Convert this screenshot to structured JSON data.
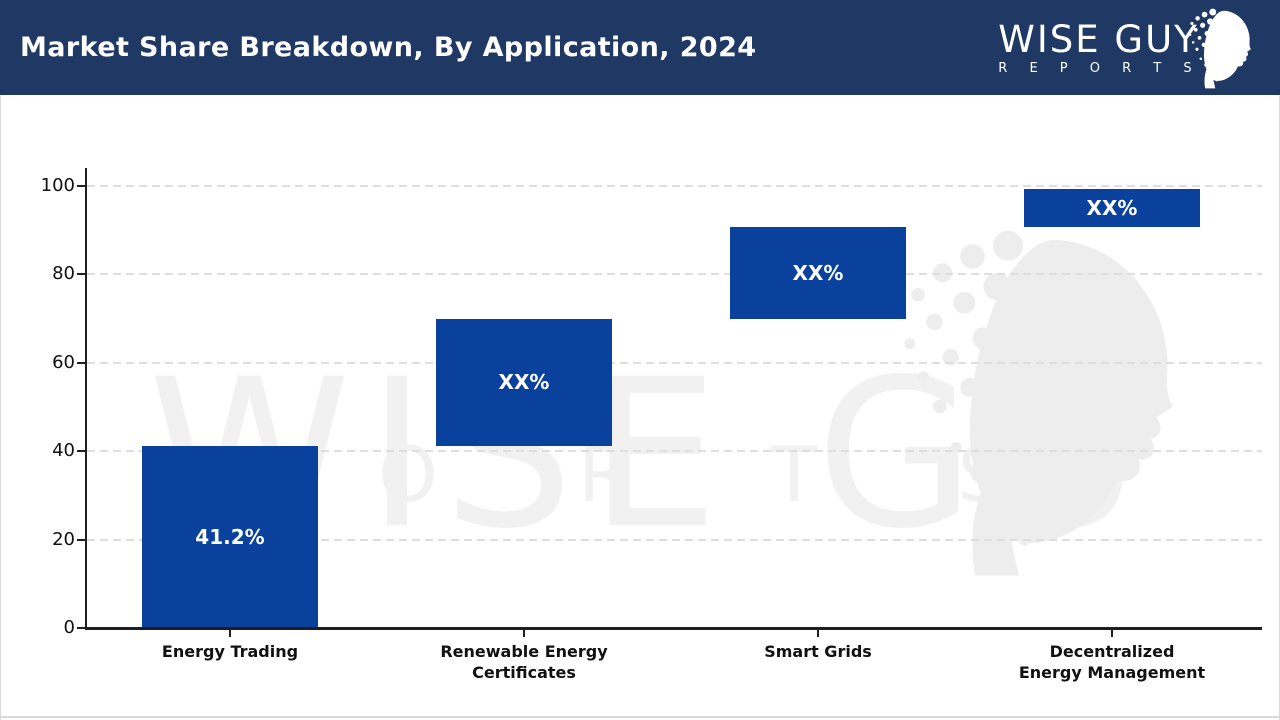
{
  "header": {
    "title": "Market Share Breakdown, By Application, 2024",
    "bg_color": "#1f3864",
    "logo": {
      "line1": "WISE GUY",
      "line2": "R E P O R T S"
    }
  },
  "watermark": {
    "line1": "WISE GU",
    "line2": "P O R T S"
  },
  "chart_data": {
    "type": "bar",
    "subtype": "waterfall",
    "title": "Market Share Breakdown, By Application, 2024",
    "categories": [
      "Energy Trading",
      "Renewable Energy\nCertificates",
      "Smart Grids",
      "Decentralized\nEnergy Management"
    ],
    "segments": [
      {
        "category": "Energy Trading",
        "start": 0,
        "end": 41.2,
        "label": "41.2%"
      },
      {
        "category": "Renewable Energy Certificates",
        "start": 41.2,
        "end": 70.0,
        "label": "XX%"
      },
      {
        "category": "Smart Grids",
        "start": 70.0,
        "end": 90.7,
        "label": "XX%"
      },
      {
        "category": "Decentralized Energy Management",
        "start": 90.7,
        "end": 99.4,
        "label": "XX%"
      }
    ],
    "yticks": [
      0,
      20,
      40,
      60,
      80,
      100
    ],
    "ylim": [
      0,
      100
    ],
    "xlabel": "",
    "ylabel": "",
    "grid": true,
    "grid_style": "dashed",
    "grid_color": "#dedede",
    "legend": false,
    "bar_color": "#0a419c",
    "bar_label_color": "#ffffff",
    "axis_color": "#1f1f1f",
    "tick_label_color": "#111111"
  }
}
